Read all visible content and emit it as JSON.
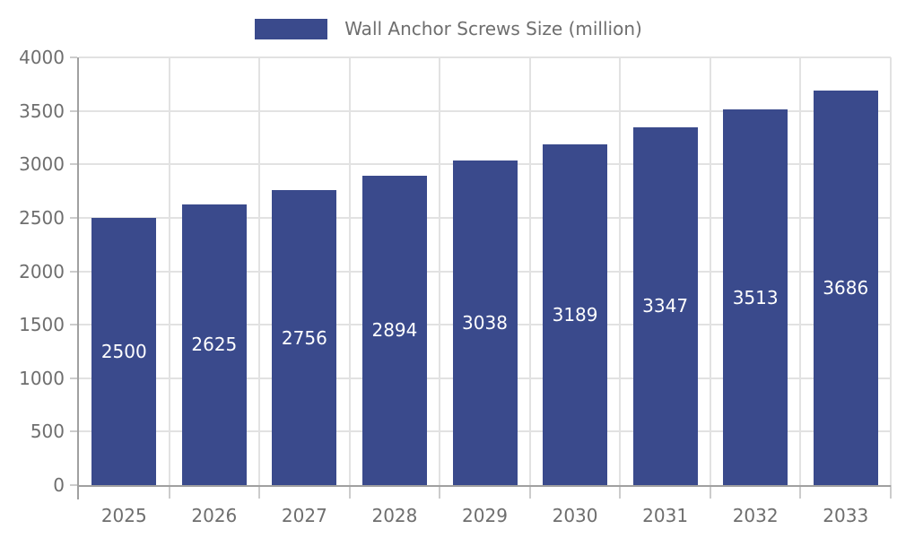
{
  "legend": {
    "label": "Wall Anchor Screws Size (million)"
  },
  "chart_data": {
    "type": "bar",
    "title": "",
    "series_name": "Wall Anchor Screws Size (million)",
    "categories": [
      "2025",
      "2026",
      "2027",
      "2028",
      "2029",
      "2030",
      "2031",
      "2032",
      "2033"
    ],
    "values": [
      2500,
      2625,
      2756,
      2894,
      3038,
      3189,
      3347,
      3513,
      3686
    ],
    "xlabel": "",
    "ylabel": "",
    "ylim": [
      0,
      4000
    ],
    "yticks": [
      0,
      500,
      1000,
      1500,
      2000,
      2500,
      3000,
      3500,
      4000
    ],
    "grid": true,
    "legend_position": "top-center",
    "bar_label_placement": "inside-center",
    "colors": {
      "bar": "#3A4A8C",
      "bar_label": "#FFFFFF",
      "tick_text": "#6E6E6E",
      "gridline": "#E2E2E2",
      "spine": "#A0A0A0",
      "tick_mark": "#CCCCCC",
      "background": "#FFFFFF"
    }
  }
}
